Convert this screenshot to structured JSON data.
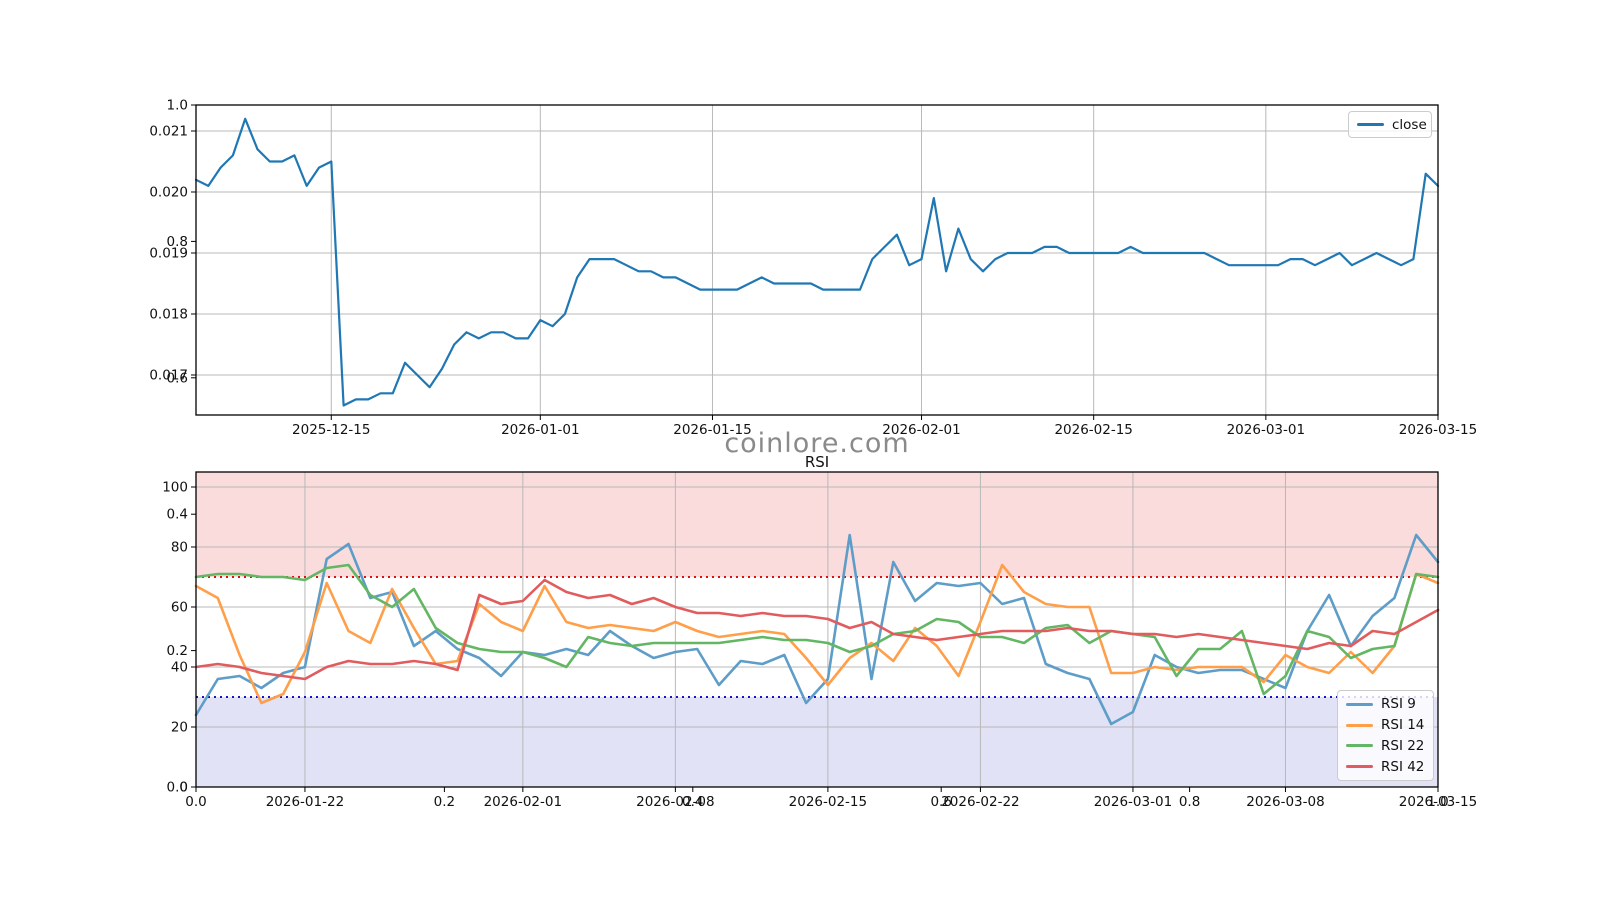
{
  "watermark": {
    "text": "coinlore.com",
    "color": "#8a8a8a"
  },
  "overlay_axis": {
    "y_ticks": [
      {
        "f": 1.0,
        "label": "1.0"
      },
      {
        "f": 0.8,
        "label": "0.8"
      },
      {
        "f": 0.6,
        "label": "0.6"
      },
      {
        "f": 0.4,
        "label": "0.4"
      },
      {
        "f": 0.2,
        "label": "0.2"
      },
      {
        "f": 0.0,
        "label": "0.0"
      }
    ],
    "x_ticks": [
      {
        "f": 0.0,
        "label": "0.0"
      },
      {
        "f": 0.2,
        "label": "0.2"
      },
      {
        "f": 0.4,
        "label": "0.4"
      },
      {
        "f": 0.6,
        "label": "0.6"
      },
      {
        "f": 0.8,
        "label": "0.8"
      },
      {
        "f": 1.0,
        "label": "1.0"
      }
    ]
  },
  "chart_data": [
    {
      "type": "line",
      "title": "",
      "ylabel": "",
      "xlabel": "",
      "grid": true,
      "legend_position": "upper right",
      "ylim": [
        0.016344,
        0.021426
      ],
      "y_ticks": [
        {
          "v": 0.021,
          "label": "0.021"
        },
        {
          "v": 0.02,
          "label": "0.020"
        },
        {
          "v": 0.019,
          "label": "0.019"
        },
        {
          "v": 0.018,
          "label": "0.018"
        },
        {
          "v": 0.017,
          "label": "0.017"
        }
      ],
      "x_ticks": [
        {
          "day": 11,
          "label": "2025-12-15"
        },
        {
          "day": 28,
          "label": "2026-01-01"
        },
        {
          "day": 42,
          "label": "2026-01-15"
        },
        {
          "day": 59,
          "label": "2026-02-01"
        },
        {
          "day": 73,
          "label": "2026-02-15"
        },
        {
          "day": 87,
          "label": "2026-03-01"
        },
        {
          "day": 101,
          "label": "2026-03-15"
        }
      ],
      "x_start_date": "2025-12-04",
      "series": [
        {
          "name": "close",
          "color": "#1f77b4",
          "width": 2.2,
          "values": [
            0.0202,
            0.0201,
            0.0204,
            0.0206,
            0.0212,
            0.0207,
            0.0205,
            0.0205,
            0.0206,
            0.0201,
            0.0204,
            0.0205,
            0.0165,
            0.0166,
            0.0166,
            0.0167,
            0.0167,
            0.0172,
            0.017,
            0.0168,
            0.0171,
            0.0175,
            0.0177,
            0.0176,
            0.0177,
            0.0177,
            0.0176,
            0.0176,
            0.0179,
            0.0178,
            0.018,
            0.0186,
            0.0189,
            0.0189,
            0.0189,
            0.0188,
            0.0187,
            0.0187,
            0.0186,
            0.0186,
            0.0185,
            0.0184,
            0.0184,
            0.0184,
            0.0184,
            0.0185,
            0.0186,
            0.0185,
            0.0185,
            0.0185,
            0.0185,
            0.0184,
            0.0184,
            0.0184,
            0.0184,
            0.0189,
            0.0191,
            0.0193,
            0.0188,
            0.0189,
            0.0199,
            0.0187,
            0.0194,
            0.0189,
            0.0187,
            0.0189,
            0.019,
            0.019,
            0.019,
            0.0191,
            0.0191,
            0.019,
            0.019,
            0.019,
            0.019,
            0.019,
            0.0191,
            0.019,
            0.019,
            0.019,
            0.019,
            0.019,
            0.019,
            0.0189,
            0.0188,
            0.0188,
            0.0188,
            0.0188,
            0.0188,
            0.0189,
            0.0189,
            0.0188,
            0.0189,
            0.019,
            0.0188,
            0.0189,
            0.019,
            0.0189,
            0.0188,
            0.0189,
            0.0203,
            0.0201
          ]
        }
      ]
    },
    {
      "type": "line",
      "title": "RSI",
      "ylabel": "",
      "xlabel": "",
      "grid": true,
      "legend_position": "lower right",
      "ylim": [
        0,
        105
      ],
      "y_ticks": [
        {
          "v": 100,
          "label": "100"
        },
        {
          "v": 80,
          "label": "80"
        },
        {
          "v": 60,
          "label": "60"
        },
        {
          "v": 40,
          "label": "40"
        },
        {
          "v": 20,
          "label": "20"
        },
        {
          "v": 0,
          "label": "0"
        }
      ],
      "x_ticks": [
        {
          "day": 5,
          "label": "2026-01-22"
        },
        {
          "day": 15,
          "label": "2026-02-01"
        },
        {
          "day": 22,
          "label": "2026-02-08"
        },
        {
          "day": 29,
          "label": "2026-02-15"
        },
        {
          "day": 36,
          "label": "2026-02-22"
        },
        {
          "day": 43,
          "label": "2026-03-01"
        },
        {
          "day": 50,
          "label": "2026-03-08"
        },
        {
          "day": 57,
          "label": "2026-03-15"
        }
      ],
      "x_start_date": "2026-01-17",
      "bands": [
        {
          "from": 70,
          "to": 105,
          "color": "#fbdcdc",
          "meaning": "overbought-zone"
        },
        {
          "from": 0,
          "to": 30,
          "color": "#e2e2f6",
          "meaning": "oversold-zone"
        }
      ],
      "hlines": [
        {
          "v": 70,
          "color": "#dd1111",
          "style": "dotted",
          "meaning": "overbought-level"
        },
        {
          "v": 30,
          "color": "#1414cc",
          "style": "dotted",
          "meaning": "oversold-level"
        }
      ],
      "series": [
        {
          "name": "RSI 9",
          "color": "#5e9dc8",
          "width": 2.6,
          "values": [
            24,
            36,
            37,
            33,
            38,
            40,
            76,
            81,
            63,
            65,
            47,
            52,
            46,
            43,
            37,
            45,
            44,
            46,
            44,
            52,
            47,
            43,
            45,
            46,
            34,
            42,
            41,
            44,
            28,
            36,
            84,
            36,
            75,
            62,
            68,
            67,
            68,
            61,
            63,
            41,
            38,
            36,
            21,
            25,
            44,
            40,
            38,
            39,
            39,
            36,
            33,
            52,
            64,
            47,
            57,
            63,
            84,
            75
          ]
        },
        {
          "name": "RSI 14",
          "color": "#ff9f4a",
          "width": 2.6,
          "values": [
            67,
            63,
            44,
            28,
            31,
            45,
            68,
            52,
            48,
            66,
            53,
            41,
            42,
            61,
            55,
            52,
            67,
            55,
            53,
            54,
            53,
            52,
            55,
            52,
            50,
            51,
            52,
            51,
            43,
            34,
            43,
            48,
            42,
            53,
            47,
            37,
            55,
            74,
            65,
            61,
            60,
            60,
            38,
            38,
            40,
            39,
            40,
            40,
            40,
            35,
            44,
            40,
            38,
            45,
            38,
            47,
            71,
            68
          ]
        },
        {
          "name": "RSI 22",
          "color": "#63b663",
          "width": 2.6,
          "values": [
            70,
            71,
            71,
            70,
            70,
            69,
            73,
            74,
            64,
            60,
            66,
            53,
            48,
            46,
            45,
            45,
            43,
            40,
            50,
            48,
            47,
            48,
            48,
            48,
            48,
            49,
            50,
            49,
            49,
            48,
            45,
            47,
            51,
            52,
            56,
            55,
            50,
            50,
            48,
            53,
            54,
            48,
            52,
            51,
            50,
            37,
            46,
            46,
            52,
            31,
            37,
            52,
            50,
            43,
            46,
            47,
            71,
            70
          ]
        },
        {
          "name": "RSI 42",
          "color": "#e05c5e",
          "width": 2.6,
          "values": [
            40,
            41,
            40,
            38,
            37,
            36,
            40,
            42,
            41,
            41,
            42,
            41,
            39,
            64,
            61,
            62,
            69,
            65,
            63,
            64,
            61,
            63,
            60,
            58,
            58,
            57,
            58,
            57,
            57,
            56,
            53,
            55,
            51,
            50,
            49,
            50,
            51,
            52,
            52,
            52,
            53,
            52,
            52,
            51,
            51,
            50,
            51,
            50,
            49,
            48,
            47,
            46,
            48,
            47,
            52,
            51,
            55,
            59
          ]
        }
      ]
    }
  ],
  "style": {
    "grid_color": "#b8b8b8",
    "spine_color": "#000000",
    "tick_label_color": "#111111"
  }
}
